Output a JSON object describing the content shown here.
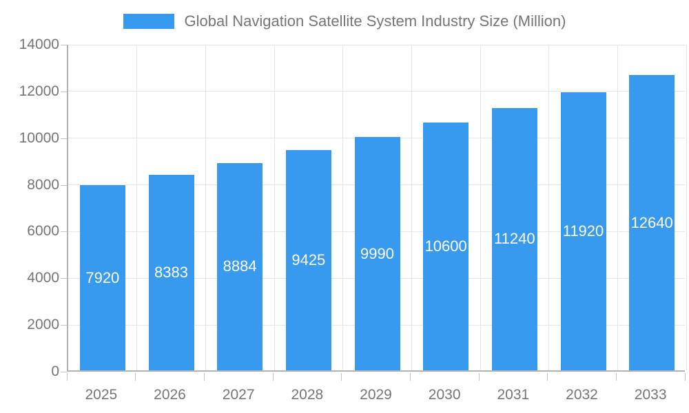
{
  "legend": {
    "label": "Global Navigation Satellite System Industry Size (Million)"
  },
  "chart_data": {
    "type": "bar",
    "title": "Global Navigation Satellite System Industry Size (Million)",
    "categories": [
      "2025",
      "2026",
      "2027",
      "2028",
      "2029",
      "2030",
      "2031",
      "2032",
      "2033"
    ],
    "values": [
      7920,
      8383,
      8884,
      9425,
      9990,
      10600,
      11240,
      11920,
      12640
    ],
    "data_labels": [
      "7920",
      "8383",
      "8884",
      "9425",
      "9990",
      "10600",
      "11240",
      "11920",
      "12640"
    ],
    "xlabel": "",
    "ylabel": "",
    "ylim": [
      0,
      14000
    ],
    "y_ticks": [
      0,
      2000,
      4000,
      6000,
      8000,
      10000,
      12000,
      14000
    ],
    "grid": true,
    "legend_position": "top",
    "data_label_position": "center-inside"
  },
  "colors": {
    "bar": "#389AEE",
    "grid": "#e5e5e5",
    "axis": "#b3b3b3",
    "tick": "#c3c3c3",
    "text": "#757575",
    "bar_label": "#ffffff"
  }
}
